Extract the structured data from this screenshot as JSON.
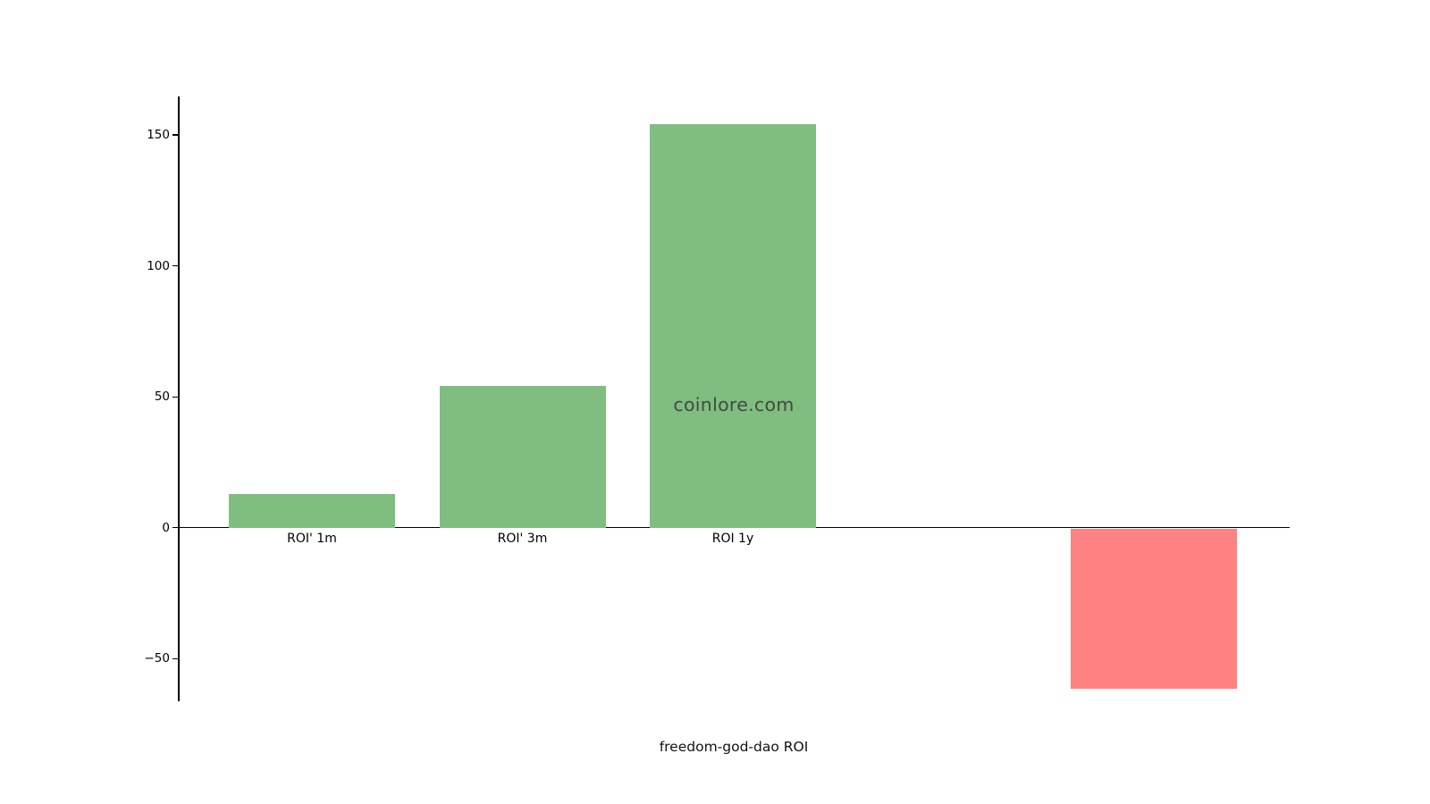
{
  "page": {
    "background": "#ffffff"
  },
  "watermark": {
    "text": "coinlore.com",
    "color": "#3f4b3f"
  },
  "chart_data": {
    "type": "bar",
    "title": "freedom-god-dao ROI",
    "xlabel": "",
    "ylabel": "",
    "categories": [
      "ROI' 1m",
      "ROI' 3m",
      "ROI 1y",
      "",
      ""
    ],
    "values": [
      13,
      54,
      154,
      0,
      -61
    ],
    "yticks": [
      150,
      100,
      50,
      0,
      -50
    ],
    "ytick_labels": [
      "150",
      "100",
      "50",
      "0",
      "−50"
    ],
    "ylim": [
      -66,
      165
    ],
    "grid": false,
    "legend": false,
    "bar_colors": {
      "positive": "#80bd80",
      "negative": "#ff8181"
    },
    "axis_color": "#000000"
  }
}
